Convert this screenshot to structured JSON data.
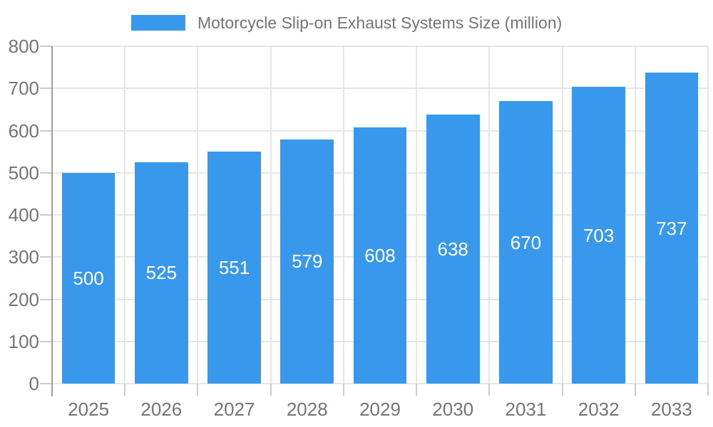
{
  "legend": {
    "series_label": "Motorcycle Slip-on Exhaust Systems Size (million)"
  },
  "chart_data": {
    "type": "bar",
    "title": "Motorcycle Slip-on Exhaust Systems Size (million)",
    "categories": [
      "2025",
      "2026",
      "2027",
      "2028",
      "2029",
      "2030",
      "2031",
      "2032",
      "2033"
    ],
    "values": [
      500,
      525,
      551,
      579,
      608,
      638,
      670,
      703,
      737
    ],
    "xlabel": "",
    "ylabel": "",
    "ylim": [
      0,
      800
    ],
    "y_ticks": [
      0,
      100,
      200,
      300,
      400,
      500,
      600,
      700,
      800
    ],
    "grid": true,
    "vertical_gridlines": true,
    "bar_value_labels": "inside-center",
    "legend_position": "top",
    "colors": {
      "bar": "#3899EC",
      "bar_label": "#FFFFFF",
      "gridline": "#E6E6E6",
      "tick": "#CCCCCC",
      "axis_line": "#9E9E9E",
      "label_text": "#757575"
    }
  }
}
